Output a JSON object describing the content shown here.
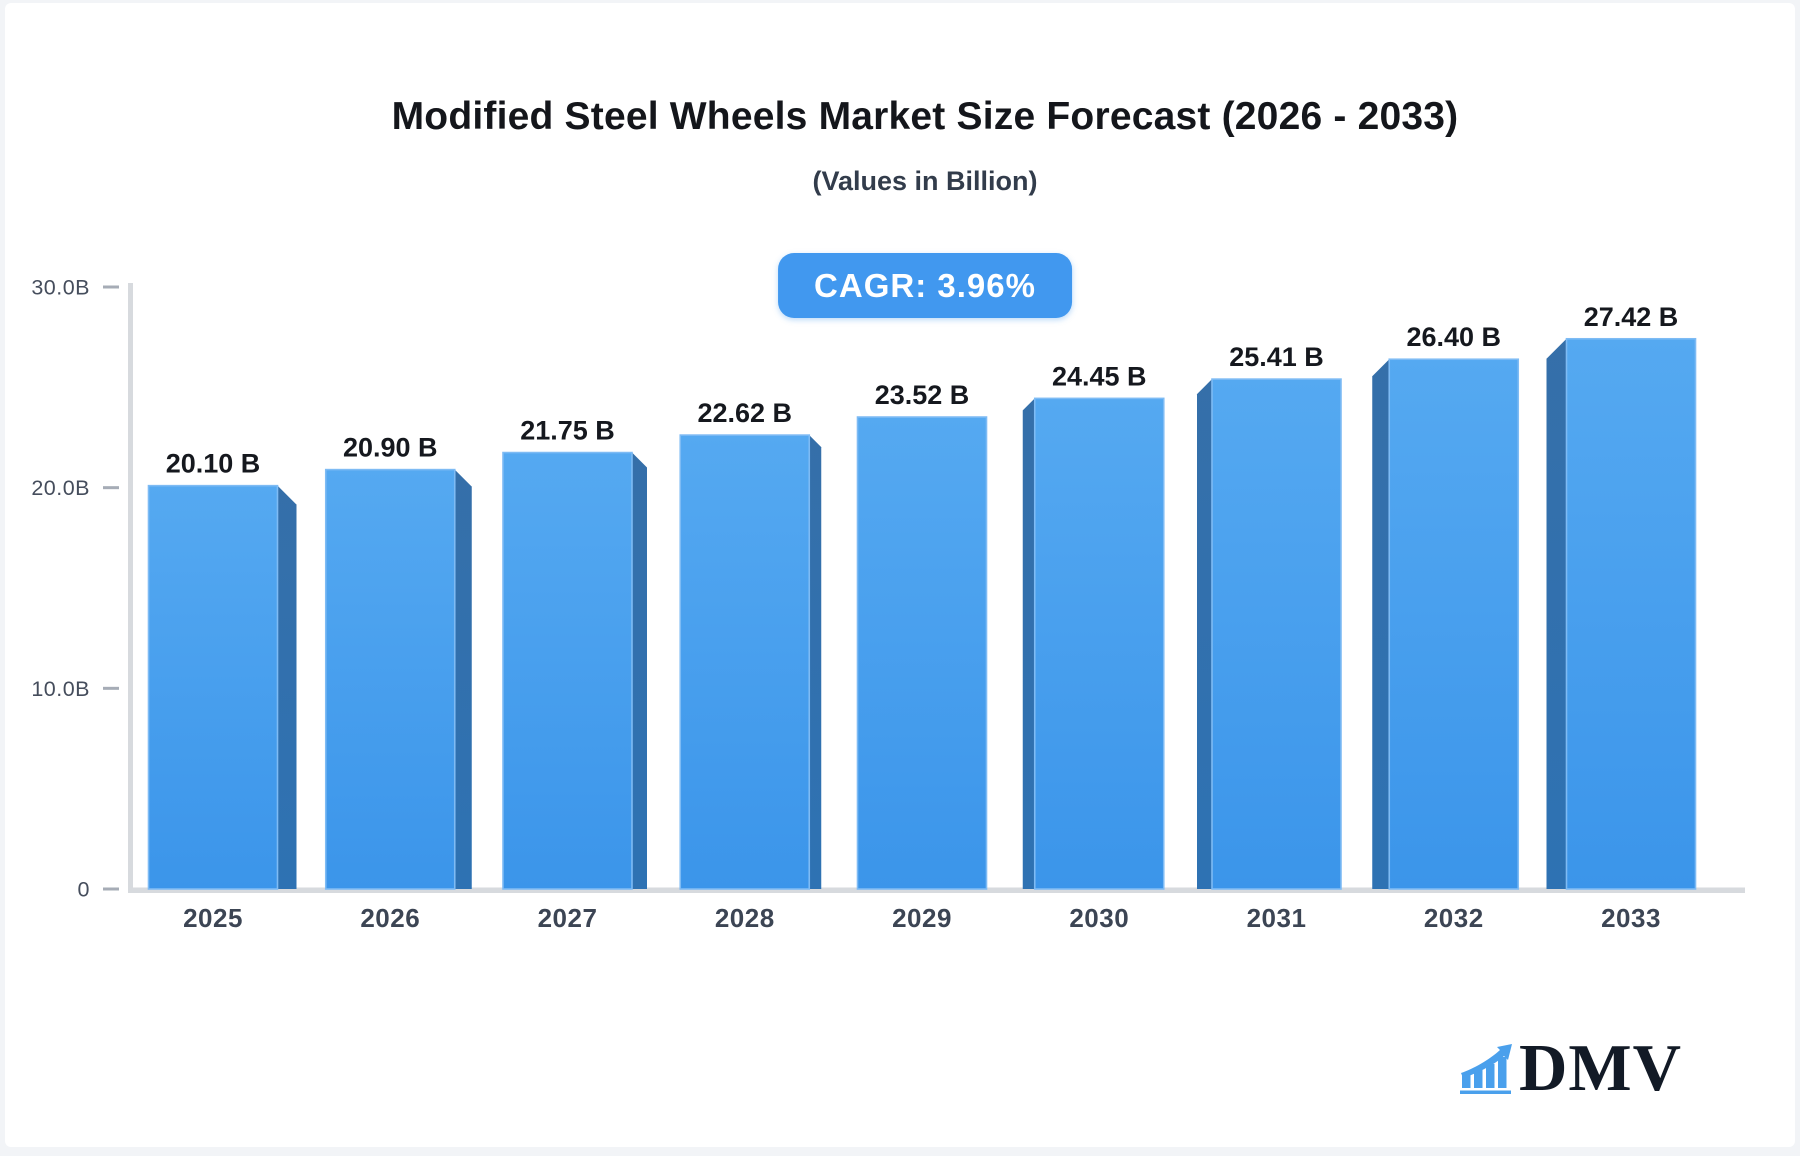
{
  "page": {
    "background_color": "#f2f4f7",
    "card_color": "#ffffff"
  },
  "header": {
    "title": "Modified Steel Wheels Market Size Forecast (2026 - 2033)",
    "subtitle": "(Values in Billion)",
    "cagr_label": "CAGR: 3.96%"
  },
  "chart_data": {
    "type": "bar",
    "title": "Modified Steel Wheels Market Size Forecast (2026 - 2033)",
    "subtitle": "(Values in Billion)",
    "unit": "Billion",
    "cagr_percent": 3.96,
    "categories": [
      "2025",
      "2026",
      "2027",
      "2028",
      "2029",
      "2030",
      "2031",
      "2032",
      "2033"
    ],
    "values": [
      20.1,
      20.9,
      21.75,
      22.62,
      23.52,
      24.45,
      25.41,
      26.4,
      27.42
    ],
    "value_labels": [
      "20.10 B",
      "20.90 B",
      "21.75 B",
      "22.62 B",
      "23.52 B",
      "24.45 B",
      "25.41 B",
      "26.40 B",
      "27.42 B"
    ],
    "ylim": [
      0,
      30
    ],
    "yticks": [
      {
        "value": 0,
        "label": "0"
      },
      {
        "value": 10,
        "label": "10.0B"
      },
      {
        "value": 20,
        "label": "20.0B"
      },
      {
        "value": 30,
        "label": "30.0B"
      }
    ],
    "grid": false,
    "legend": false,
    "style": "3d-perspective-bars",
    "colors": {
      "bar_top": "#55A9F1",
      "bar_bottom": "#3B95EA",
      "bar_edge_highlight": "#7EBBF4",
      "bar_side": "#2E72B3",
      "axis_line": "#d7dade",
      "tick_dash": "#a6acb6",
      "y_label": "#454d5c",
      "x_label": "#3c4554",
      "value_label": "#15181e"
    }
  },
  "branding": {
    "logo_text": "DMV",
    "logo_icon": "bar-chart-up-arrow-icon",
    "logo_text_color": "#121a26",
    "logo_icon_color": "#4AA0EC"
  }
}
